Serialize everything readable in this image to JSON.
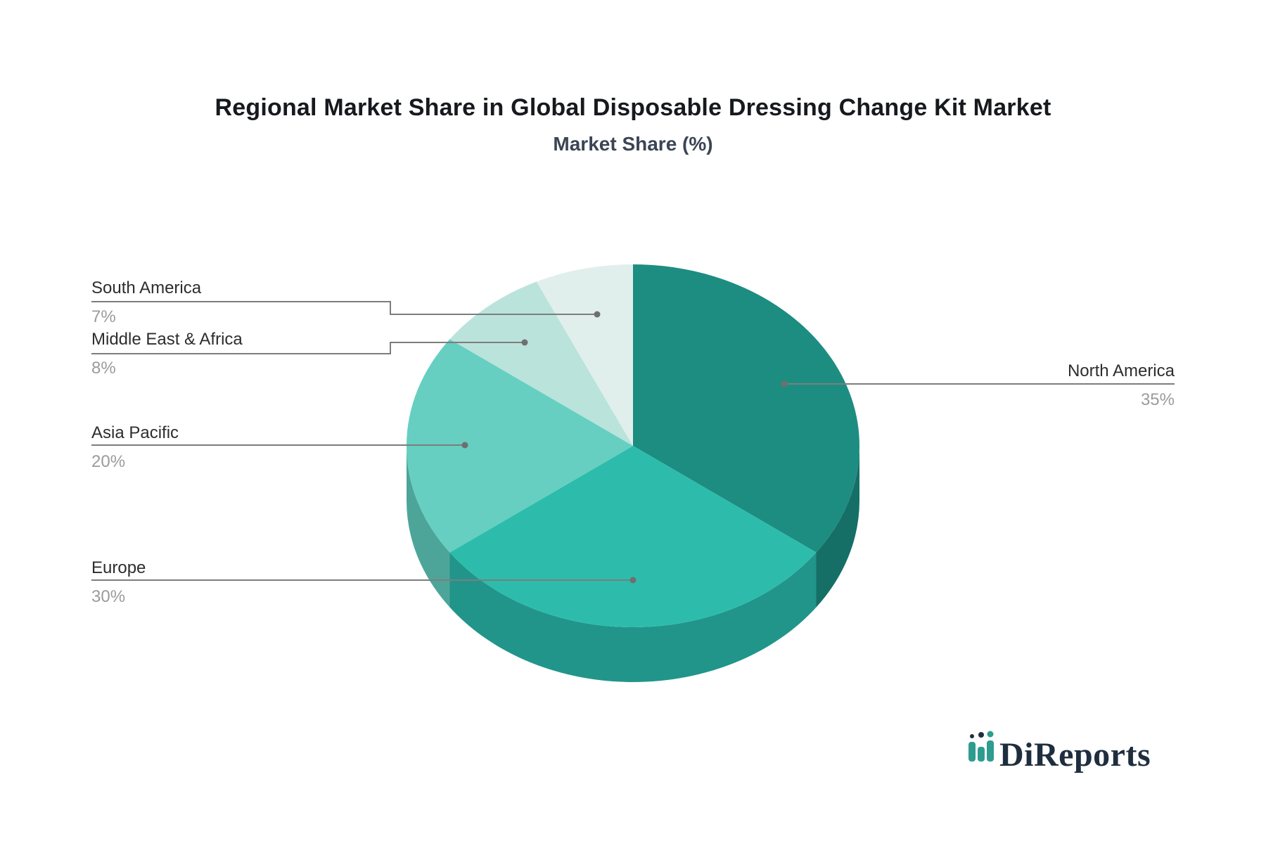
{
  "page": {
    "background": "#ffffff"
  },
  "header": {
    "title": "Regional Market Share in Global Disposable Dressing Change Kit Market",
    "subtitle": "Market Share (%)"
  },
  "chart_data": {
    "type": "pie",
    "style": "3d",
    "title": "Regional Market Share in Global Disposable Dressing Change Kit Market",
    "subtitle": "Market Share (%)",
    "unit": "%",
    "direction": "clockwise",
    "start_angle_deg": 0,
    "slices": [
      {
        "label": "North America",
        "value": 35,
        "display": "35%",
        "color": "#1d8d82",
        "rim_color": "#156f67",
        "label_side": "right"
      },
      {
        "label": "Europe",
        "value": 30,
        "display": "30%",
        "color": "#2dbcab",
        "rim_color": "#21958a",
        "label_side": "left"
      },
      {
        "label": "Asia Pacific",
        "value": 20,
        "display": "20%",
        "color": "#66cfc1",
        "rim_color": "#4da59a",
        "label_side": "left"
      },
      {
        "label": "Middle East & Africa",
        "value": 8,
        "display": "8%",
        "color": "#bae3db",
        "rim_color": null,
        "label_side": "left"
      },
      {
        "label": "South America",
        "value": 7,
        "display": "7%",
        "color": "#e1efec",
        "rim_color": null,
        "label_side": "left"
      }
    ],
    "leader_line_color": "#7d7d7d",
    "leader_dot_color": "#6f6f6f",
    "label_text_color": "#2d2d2d",
    "value_text_color": "#9b9b9b"
  },
  "logo": {
    "text": "DiReports",
    "text_color": "#1e2e3e",
    "icon_teal": "#2f9c90",
    "icon_navy": "#1e2e3e"
  }
}
